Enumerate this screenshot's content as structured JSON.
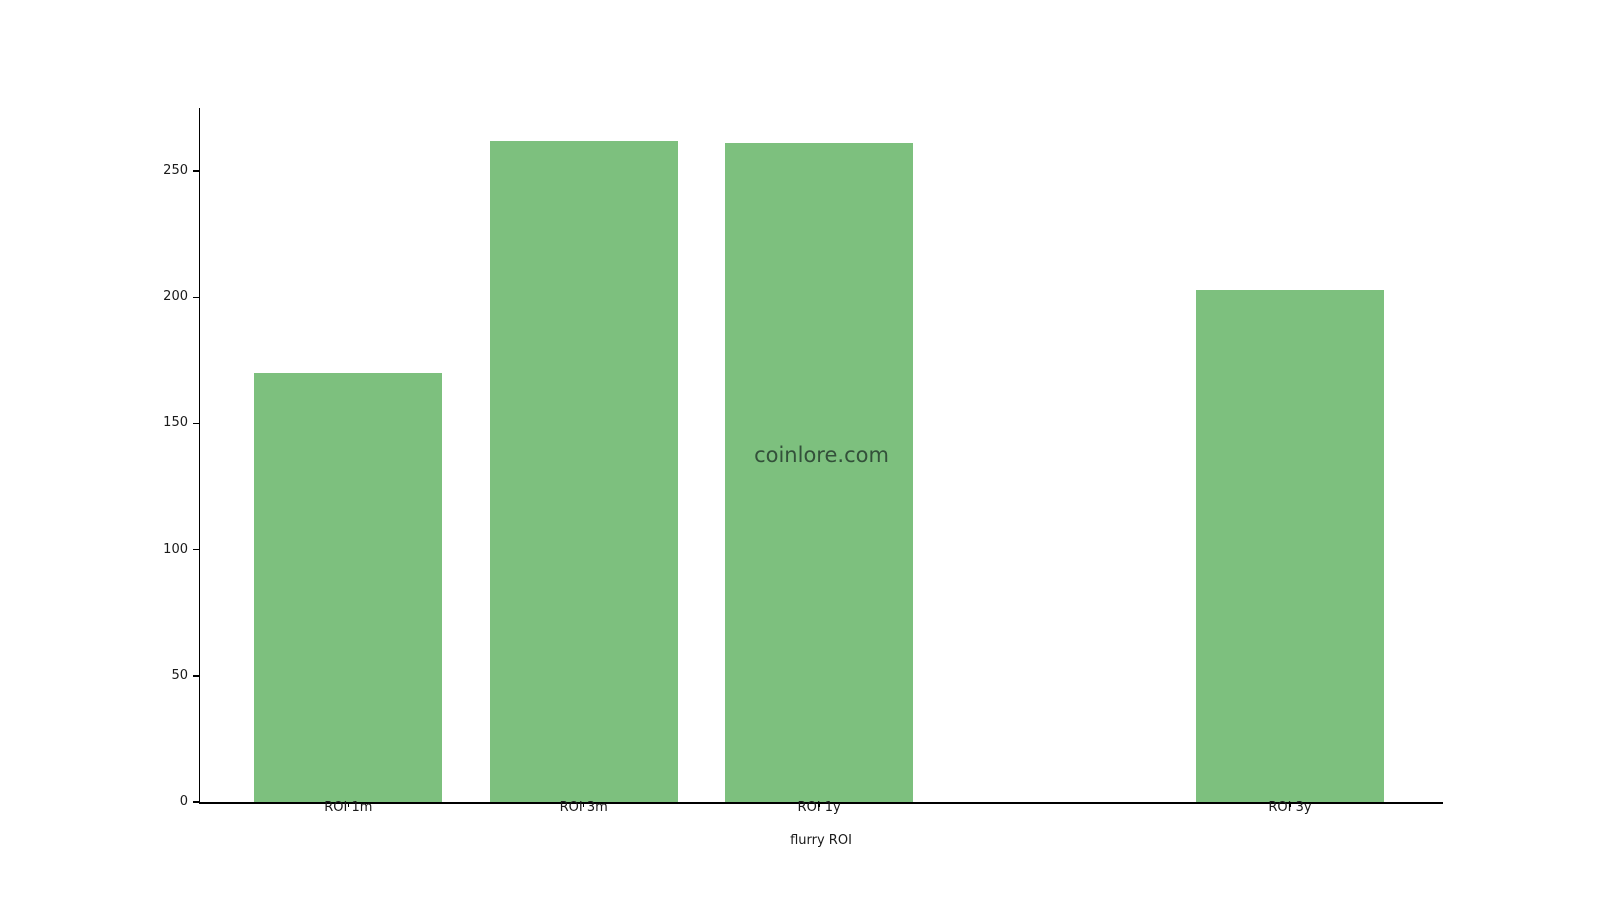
{
  "figure": {
    "background": "#ffffff"
  },
  "chart_data": {
    "type": "bar",
    "title": "",
    "xlabel": "flurry ROI",
    "ylabel": "",
    "categories": [
      "ROI 1m",
      "ROI 3m",
      "ROI 1y",
      "ROI 3y"
    ],
    "values": [
      170,
      262,
      261,
      203
    ],
    "x_positions": [
      0,
      1,
      2,
      4
    ],
    "bar_width": 0.8,
    "bar_color": "#7dc07e",
    "xlim": [
      -0.63,
      4.65
    ],
    "ylim": [
      0,
      275
    ],
    "yticks": [
      0,
      50,
      100,
      150,
      200,
      250
    ],
    "grid": false,
    "legend": "none",
    "axis_color": "#000000",
    "text_color": "#1a1a1a",
    "watermark": {
      "text": "coinlore.com",
      "color": "#33503a"
    }
  }
}
